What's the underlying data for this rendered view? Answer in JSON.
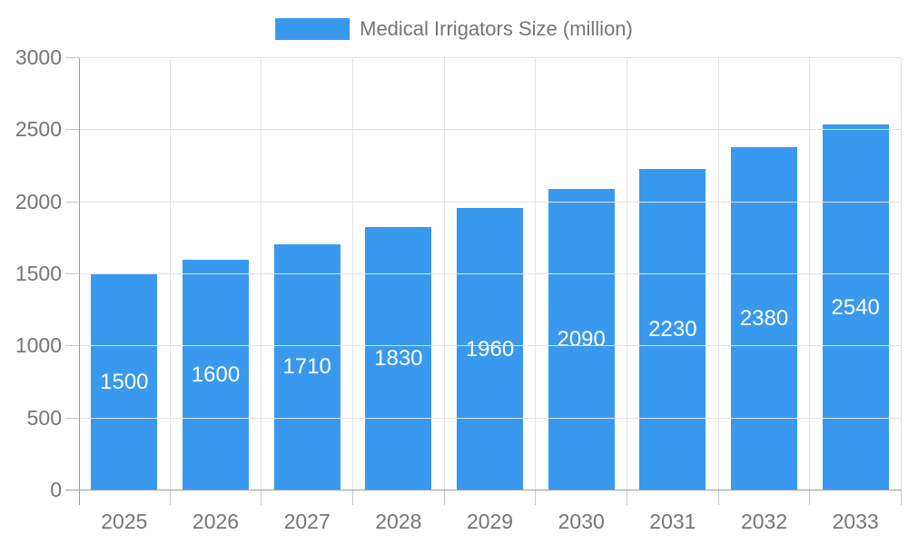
{
  "legend": {
    "label": "Medical Irrigators Size (million)"
  },
  "chart_data": {
    "type": "bar",
    "title": "Medical Irrigators Size (million)",
    "series_name": "Medical Irrigators Size (million)",
    "categories": [
      "2025",
      "2026",
      "2027",
      "2028",
      "2029",
      "2030",
      "2031",
      "2032",
      "2033"
    ],
    "values": [
      1500,
      1600,
      1710,
      1830,
      1960,
      2090,
      2230,
      2380,
      2540
    ],
    "bar_labels_visible": true,
    "xlabel": "",
    "ylabel": "",
    "ylim": [
      0,
      3000
    ],
    "yticks": [
      0,
      500,
      1000,
      1500,
      2000,
      2500,
      3000
    ],
    "grid": true,
    "legend_position": "top-center",
    "colors": {
      "bar": "#3999EE",
      "bar_label": "#FFFFFF",
      "axis_text": "#757575",
      "grid_line": "#E2E2E2",
      "axis_line": "#9E9E9E",
      "tick_line": "#C6C6C6",
      "background": "#FFFFFF"
    }
  }
}
